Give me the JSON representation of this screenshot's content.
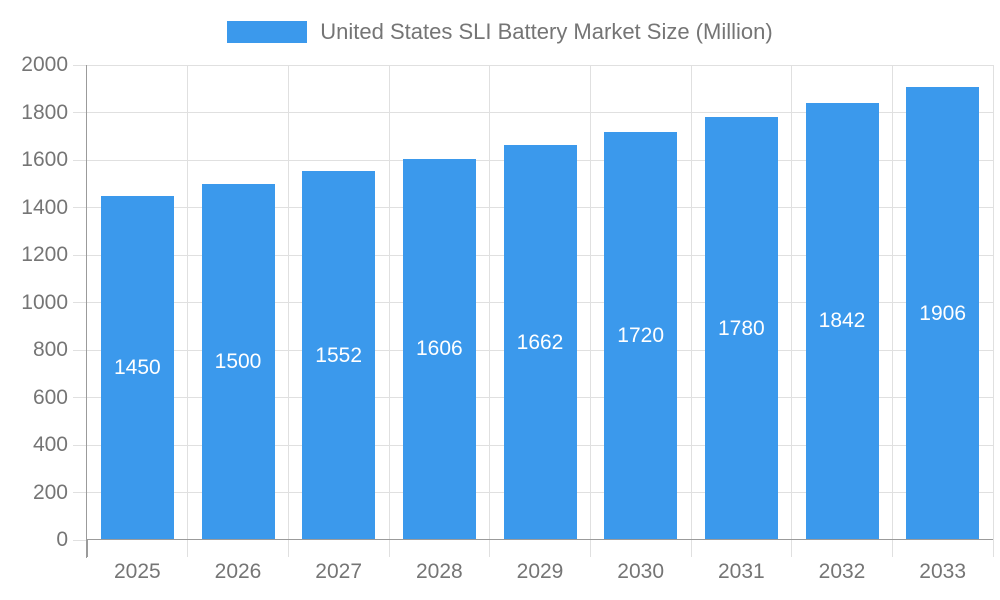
{
  "chart_data": {
    "type": "bar",
    "title": "United States SLI Battery Market Size (Million)",
    "legend": {
      "position": "top",
      "label": "United States SLI Battery Market Size (Million)"
    },
    "categories": [
      "2025",
      "2026",
      "2027",
      "2028",
      "2029",
      "2030",
      "2031",
      "2032",
      "2033"
    ],
    "values": [
      1450,
      1500,
      1552,
      1606,
      1662,
      1720,
      1780,
      1842,
      1906
    ],
    "xlabel": "",
    "ylabel": "",
    "ylim": [
      0,
      2000
    ],
    "y_ticks": [
      0,
      200,
      400,
      600,
      800,
      1000,
      1200,
      1400,
      1600,
      1800,
      2000
    ],
    "grid": true,
    "colors": {
      "bar": "#3b99ec",
      "bar_label_text": "#ffffff",
      "axis_text": "#757575",
      "gridline": "#e0e0e0",
      "tick": "#e0e0e0",
      "axis_line": "#9b9b9b"
    }
  }
}
